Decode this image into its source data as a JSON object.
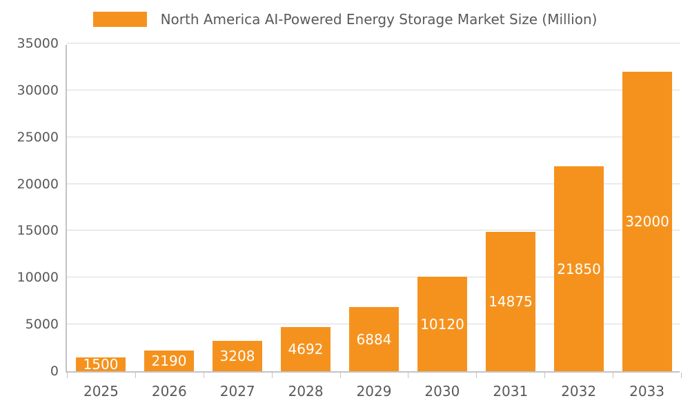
{
  "chart_data": {
    "type": "bar",
    "title": "North America AI-Powered Energy Storage Market Size (Million)",
    "categories": [
      "2025",
      "2026",
      "2027",
      "2028",
      "2029",
      "2030",
      "2031",
      "2032",
      "2033"
    ],
    "values": [
      1500,
      2190,
      3208,
      4692,
      6884,
      10120,
      14875,
      21850,
      32000
    ],
    "xlabel": "",
    "ylabel": "",
    "ylim": [
      0,
      35000
    ],
    "yticks": [
      0,
      5000,
      10000,
      15000,
      20000,
      25000,
      30000,
      35000
    ],
    "grid": true,
    "legend_position": "top",
    "bar_color": "#F5921E",
    "value_label_color": "#ffffff",
    "axis_text_color": "#58595b",
    "grid_color": "#d9d9d9",
    "axis_line_color": "#c3c3c3"
  }
}
